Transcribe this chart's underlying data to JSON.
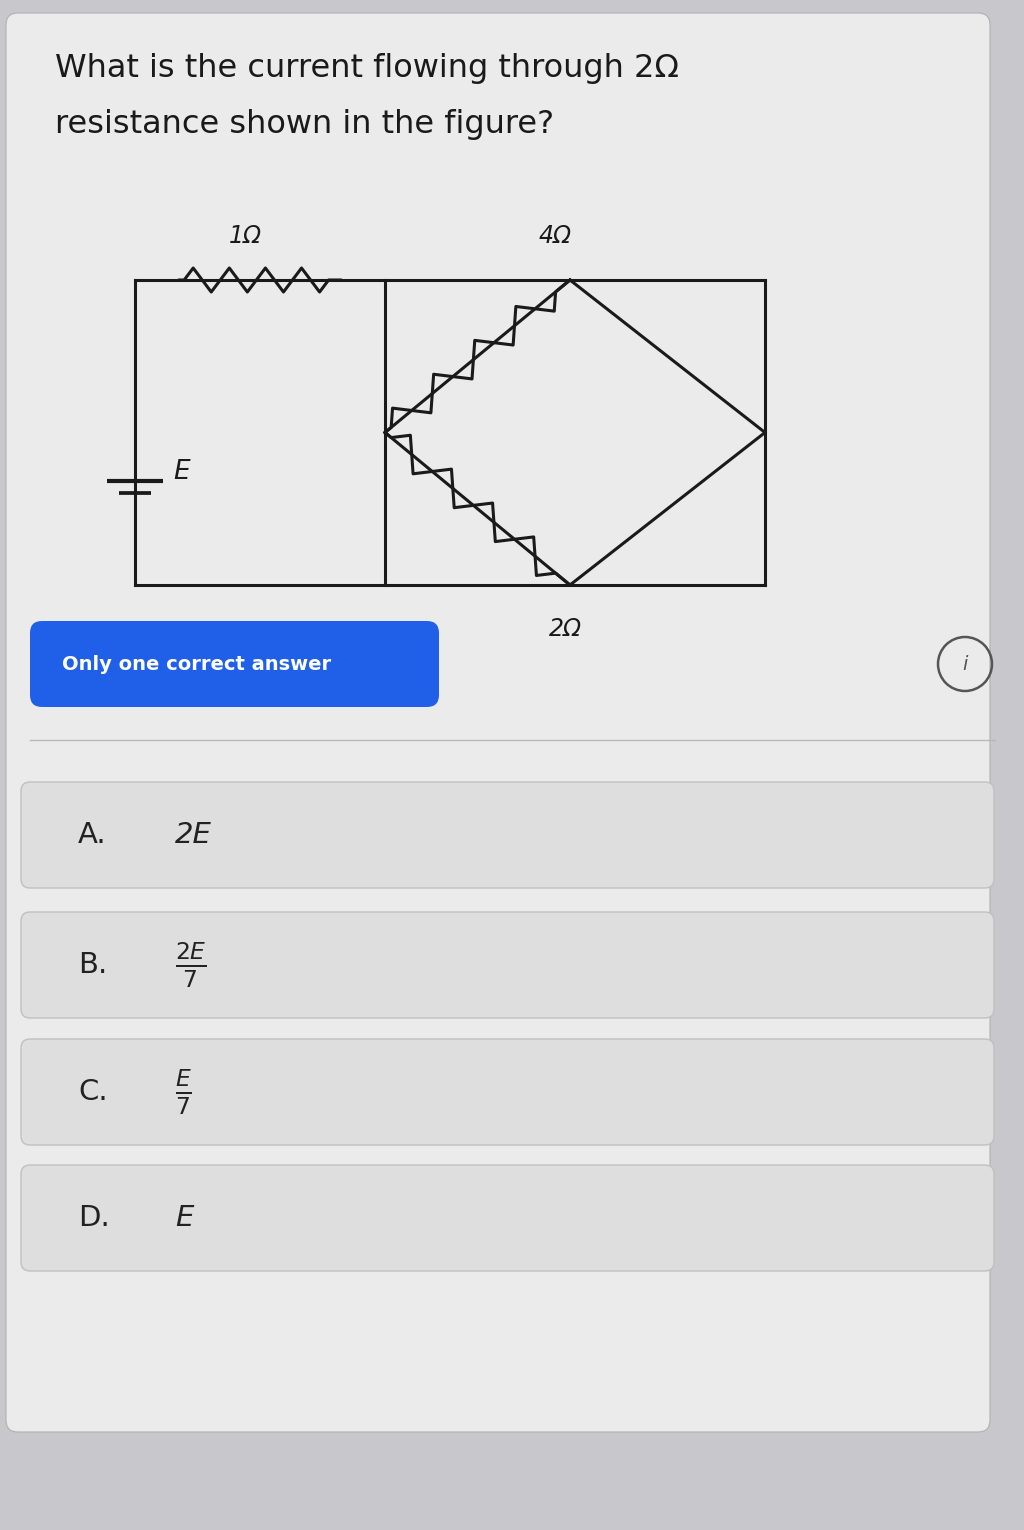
{
  "title_line1": "What is the current flowing through 2Ω",
  "title_line2": "resistance shown in the figure?",
  "title_fontsize": 23,
  "bg_color": "#c8c8cc",
  "card_color": "#ebebeb",
  "option_fontsize": 21,
  "only_one_bg": "#2060e8",
  "only_one_text": "Only one correct answer",
  "info_circle_color": "#555555",
  "circuit_line_color": "#1a1a1a",
  "label_1ohm": "1Ω",
  "label_4ohm": "4Ω",
  "label_2ohm": "2Ω",
  "label_E": "E",
  "option_A_label": "A.",
  "option_A_text": "2E",
  "option_B_label": "B.",
  "option_C_label": "C.",
  "option_D_label": "D.",
  "option_D_text": "E",
  "option_box_color": "#dedede",
  "option_box_edge": "#c0c0c0"
}
